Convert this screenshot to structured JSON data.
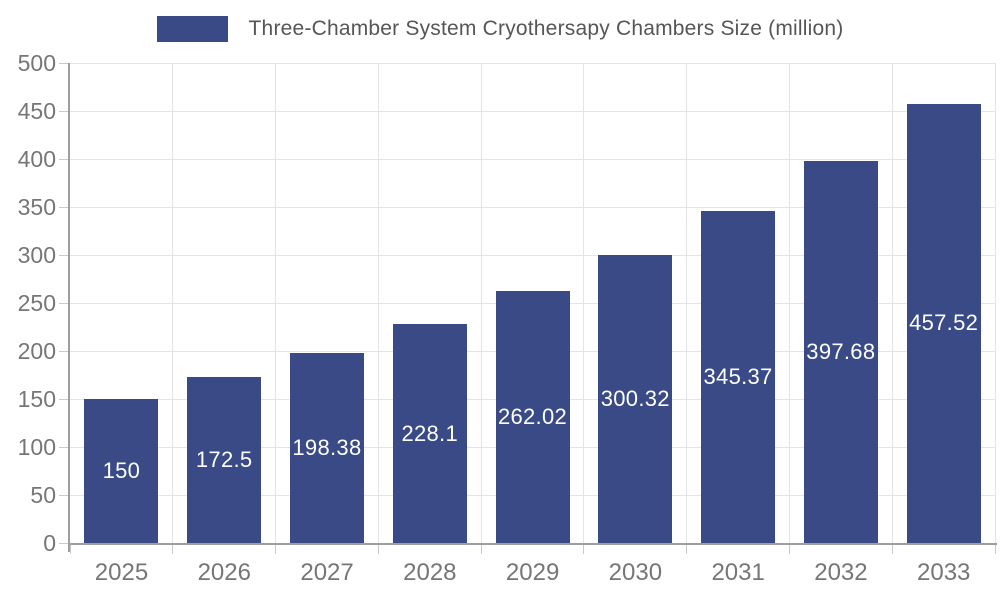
{
  "legend": {
    "swatch_icon": "series-color-swatch"
  },
  "colors": {
    "bar": "#394A86",
    "grid": "#E4E4E4",
    "spine": "#9E9E9E",
    "tick": "#C9C9C9",
    "axis_text": "#767676",
    "legend_text": "#565656",
    "data_label": "#FFFFFF",
    "background": "#FFFFFF"
  },
  "chart_data": {
    "type": "bar",
    "title": "Three-Chamber System Cryothersapy Chambers Size (million)",
    "categories": [
      "2025",
      "2026",
      "2027",
      "2028",
      "2029",
      "2030",
      "2031",
      "2032",
      "2033"
    ],
    "values": [
      150,
      172.5,
      198.38,
      228.1,
      262.02,
      300.32,
      345.37,
      397.68,
      457.52
    ],
    "value_labels": [
      "150",
      "172.5",
      "198.38",
      "228.1",
      "262.02",
      "300.32",
      "345.37",
      "397.68",
      "457.52"
    ],
    "xlabel": "",
    "ylabel": "",
    "ylim": [
      0,
      500
    ],
    "yticks": [
      0,
      50,
      100,
      150,
      200,
      250,
      300,
      350,
      400,
      450,
      500
    ],
    "grid": true,
    "legend_position": "top",
    "data_labels_inside_bars": true
  }
}
